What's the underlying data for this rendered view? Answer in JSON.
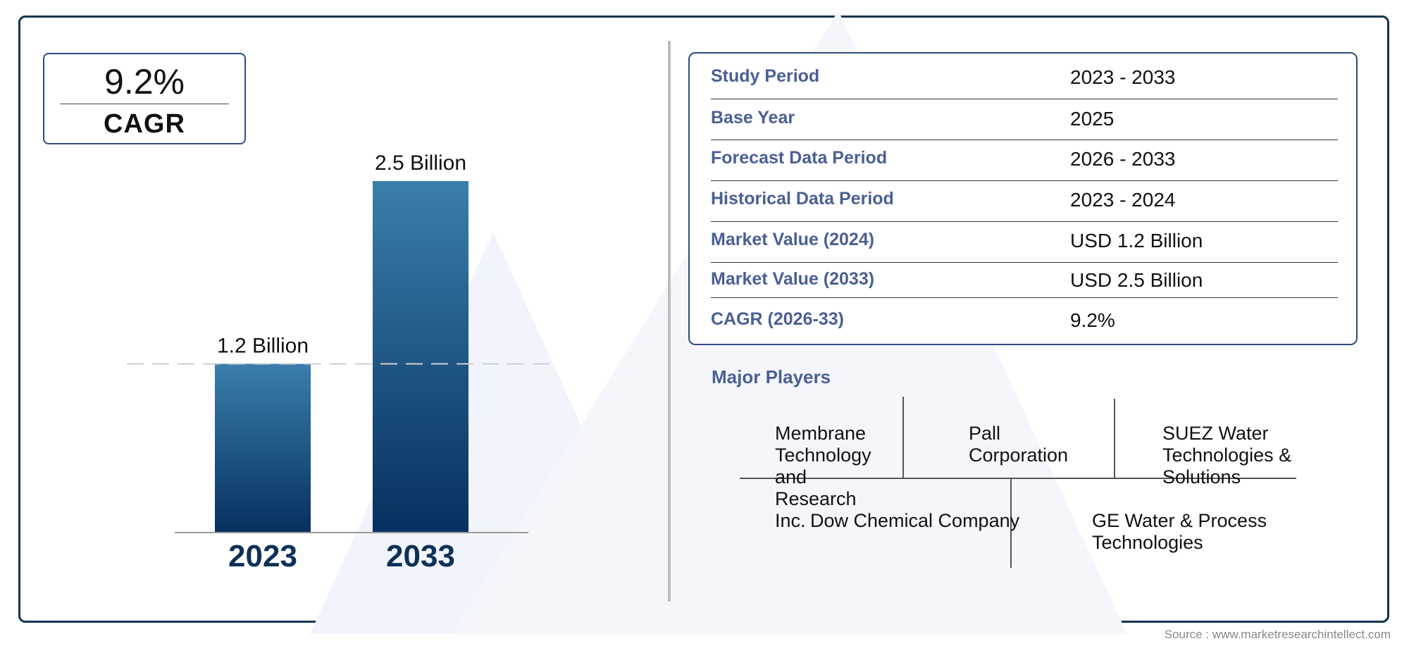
{
  "cagr_badge": {
    "value": "9.2%",
    "label": "CAGR"
  },
  "chart_data": {
    "type": "bar",
    "categories": [
      "2023",
      "2033"
    ],
    "values": [
      1.2,
      2.5
    ],
    "data_labels": [
      "1.2 Billion",
      "2.5 Billion"
    ],
    "title": "",
    "xlabel": "",
    "ylabel": "",
    "ylim": [
      0,
      2.5
    ],
    "grid": false,
    "reference_line": 1.2,
    "colors": {
      "bar_top": "#3a7eab",
      "bar_bottom": "#06305f",
      "category_text": "#0e3158"
    }
  },
  "info": {
    "rows": [
      {
        "label": "Study Period",
        "value": "2023 - 2033"
      },
      {
        "label": "Base Year",
        "value": "2025"
      },
      {
        "label": "Forecast Data Period",
        "value": "2026 - 2033"
      },
      {
        "label": "Historical Data Period",
        "value": "2023 - 2024"
      },
      {
        "label": "Market Value (2024)",
        "value": "USD 1.2 Billion"
      },
      {
        "label": "Market Value (2033)",
        "value": "USD 2.5 Billion"
      },
      {
        "label": "CAGR (2026-33)",
        "value": "9.2%"
      }
    ]
  },
  "players": {
    "title": "Major Players",
    "items": [
      "Membrane Technology and Research Inc.",
      "Pall Corporation",
      "SUEZ Water Technologies & Solutions",
      "Dow Chemical Company",
      "GE Water & Process Technologies"
    ]
  },
  "source": "Source : www.marketresearchintellect.com",
  "colors": {
    "frame": "#0e3450",
    "accent": "#4a5f94",
    "box_border": "#2f4c7e"
  }
}
